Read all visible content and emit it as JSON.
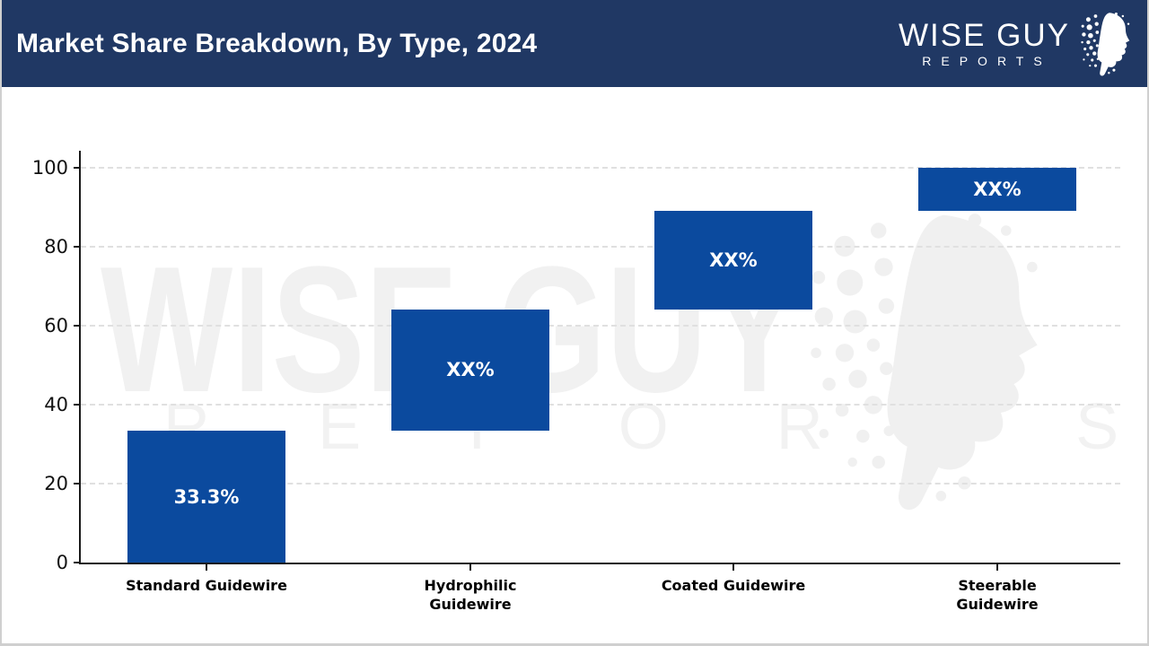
{
  "header": {
    "title": "Market Share Breakdown, By Type, 2024",
    "logo": {
      "line1": "WISE GUY",
      "line2": "REPORTS"
    }
  },
  "watermark": {
    "line1": "WISE GUY",
    "line2": "R E P O R T S"
  },
  "chart_data": {
    "type": "bar",
    "subtype": "floating-stacked-percentage",
    "title": "Market Share Breakdown, By Type, 2024",
    "categories": [
      "Standard Guidewire",
      "Hydrophilic\nGuidewire",
      "Coated Guidewire",
      "Steerable\nGuidewire"
    ],
    "segments": [
      {
        "category": "Standard Guidewire",
        "label": "33.3%",
        "start": 0,
        "end": 33.3
      },
      {
        "category": "Hydrophilic Guidewire",
        "label": "XX%",
        "start": 33.3,
        "end": 64.2
      },
      {
        "category": "Coated Guidewire",
        "label": "XX%",
        "start": 64.2,
        "end": 89.1
      },
      {
        "category": "Steerable Guidewire",
        "label": "XX%",
        "start": 89.1,
        "end": 100
      }
    ],
    "ylim": [
      0,
      100
    ],
    "yticks": [
      0,
      20,
      40,
      60,
      80,
      100
    ],
    "grid": "horizontal dashed",
    "legend": "none"
  },
  "colors": {
    "header_bg": "#203864",
    "bar": "#0b4a9e",
    "bar_label": "#ffffff",
    "axis": "#1a1a1a",
    "grid": "#e0e0e0",
    "text": "#111111",
    "watermark": "#f0f0f0",
    "frame": "#cfcfcf"
  }
}
